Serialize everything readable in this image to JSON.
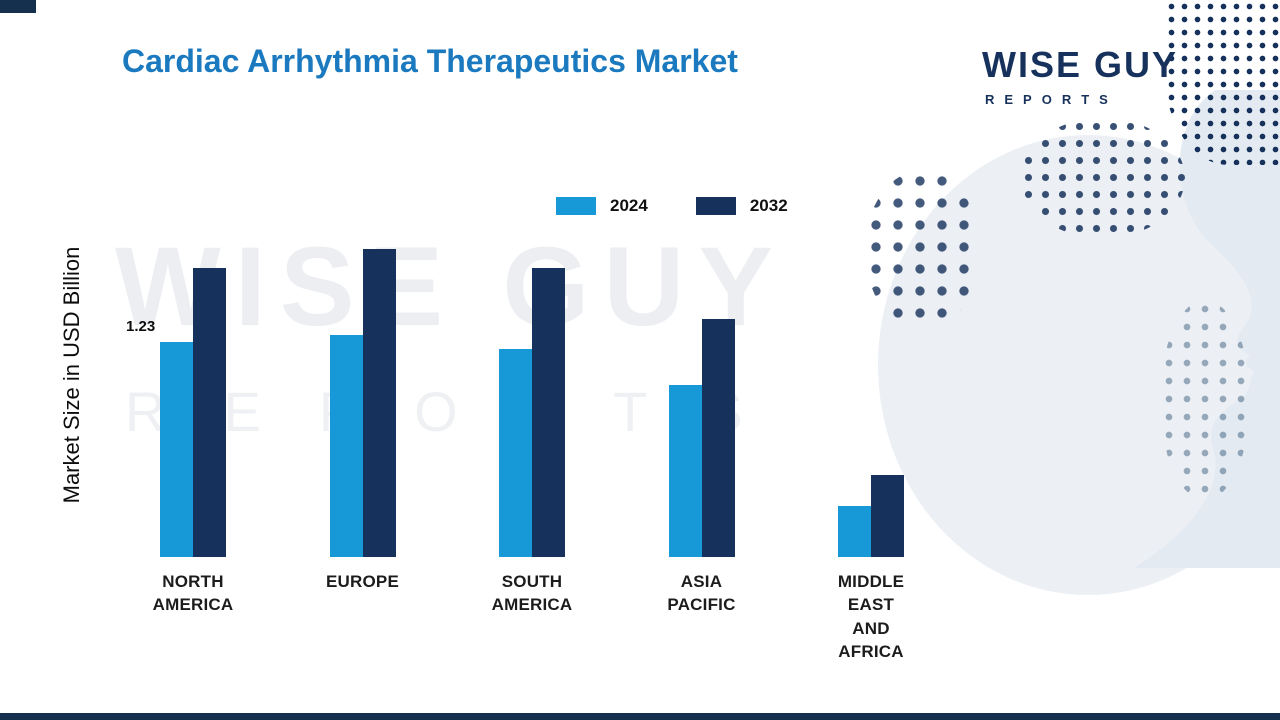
{
  "page": {
    "title": "Cardiac Arrhythmia Therapeutics Market",
    "ylabel": "Market Size in USD Billion"
  },
  "brand": {
    "name": "WISE GUY",
    "sub": "REPORTS"
  },
  "watermark": {
    "name": "WISE GUY",
    "sub": "REPORTS"
  },
  "colors": {
    "series_2024": "#1699d6",
    "series_2032": "#16325c",
    "title_blue": "#1b7abf",
    "accent_navy": "#14304e"
  },
  "chart_data": {
    "type": "bar",
    "title": "Cardiac Arrhythmia Therapeutics Market",
    "xlabel": "",
    "ylabel": "Market Size in USD Billion",
    "categories": [
      "NORTH AMERICA",
      "EUROPE",
      "SOUTH AMERICA",
      "ASIA PACIFIC",
      "MIDDLE EAST AND AFRICA"
    ],
    "series": [
      {
        "name": "2024",
        "color": "#1699d6",
        "values": [
          1.23,
          1.27,
          1.19,
          0.98,
          0.29
        ],
        "labels": [
          "1.23",
          "",
          "",
          "",
          ""
        ]
      },
      {
        "name": "2032",
        "color": "#16325c",
        "values": [
          1.65,
          1.76,
          1.65,
          1.36,
          0.47
        ],
        "labels": [
          "",
          "",
          "",
          "",
          ""
        ]
      }
    ],
    "ylim": [
      0,
      2.0
    ],
    "grid": false,
    "legend_position": "top"
  }
}
